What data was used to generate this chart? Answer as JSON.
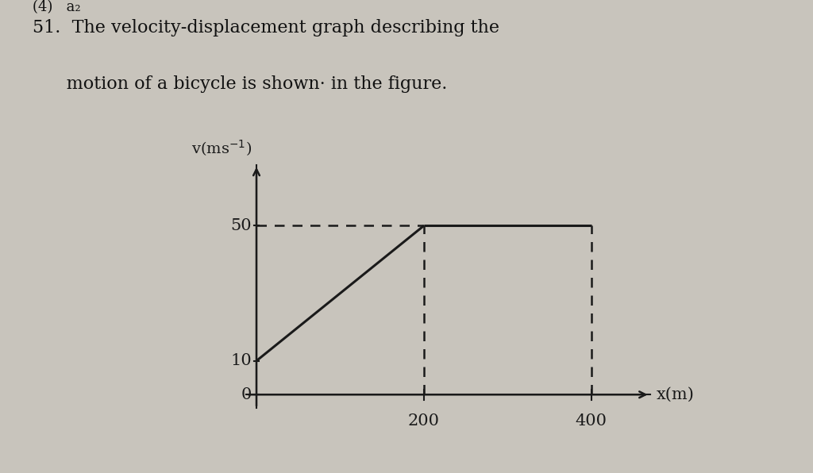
{
  "xlabel": "x(m)",
  "ylabel": "v(ms$^{-1}$)",
  "background_color": "#ccc8c0",
  "line_color": "#1a1a1a",
  "dashed_color": "#1a1a1a",
  "solid_segments": [
    {
      "x": [
        0,
        200
      ],
      "v": [
        10,
        50
      ]
    },
    {
      "x": [
        200,
        400
      ],
      "v": [
        50,
        50
      ]
    }
  ],
  "dashed_segments": [
    {
      "x": [
        0,
        200
      ],
      "v": [
        50,
        50
      ]
    },
    {
      "x": [
        200,
        200
      ],
      "v": [
        0,
        50
      ]
    },
    {
      "x": [
        400,
        400
      ],
      "v": [
        0,
        50
      ]
    }
  ],
  "x_ticks": [
    200,
    400
  ],
  "y_ticks": [
    0,
    10,
    50
  ],
  "xlim": [
    -15,
    490
  ],
  "ylim": [
    -5,
    72
  ],
  "title_line1": "51.  The velocity-displacement graph describing the",
  "title_line2": "      motion of a bicycle is shown· in the figure.",
  "fig_bg": "#c8c4bc"
}
